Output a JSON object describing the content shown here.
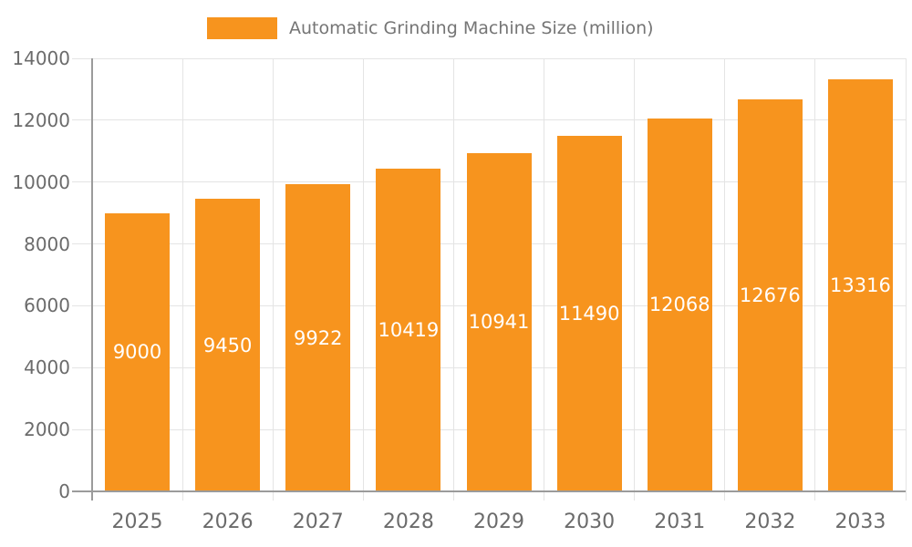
{
  "chart_data": {
    "type": "bar",
    "title": "Automatic Grinding Machine Size (million)",
    "legend_position": "top",
    "categories": [
      "2025",
      "2026",
      "2027",
      "2028",
      "2029",
      "2030",
      "2031",
      "2032",
      "2033"
    ],
    "values": [
      9000,
      9450,
      9922,
      10419,
      10941,
      11490,
      12068,
      12676,
      13316
    ],
    "xlabel": "",
    "ylabel": "",
    "ylim": [
      0,
      14000
    ],
    "yticks": [
      0,
      2000,
      4000,
      6000,
      8000,
      10000,
      12000,
      14000
    ],
    "grid": true,
    "bar_color": "#F7941E",
    "value_label_color": "#FFFFFF",
    "grid_color": "#E4E4E4",
    "axis_color": "#9B9B9B",
    "tick_label_color": "#6B6B6B",
    "legend_text_color": "#757575"
  }
}
